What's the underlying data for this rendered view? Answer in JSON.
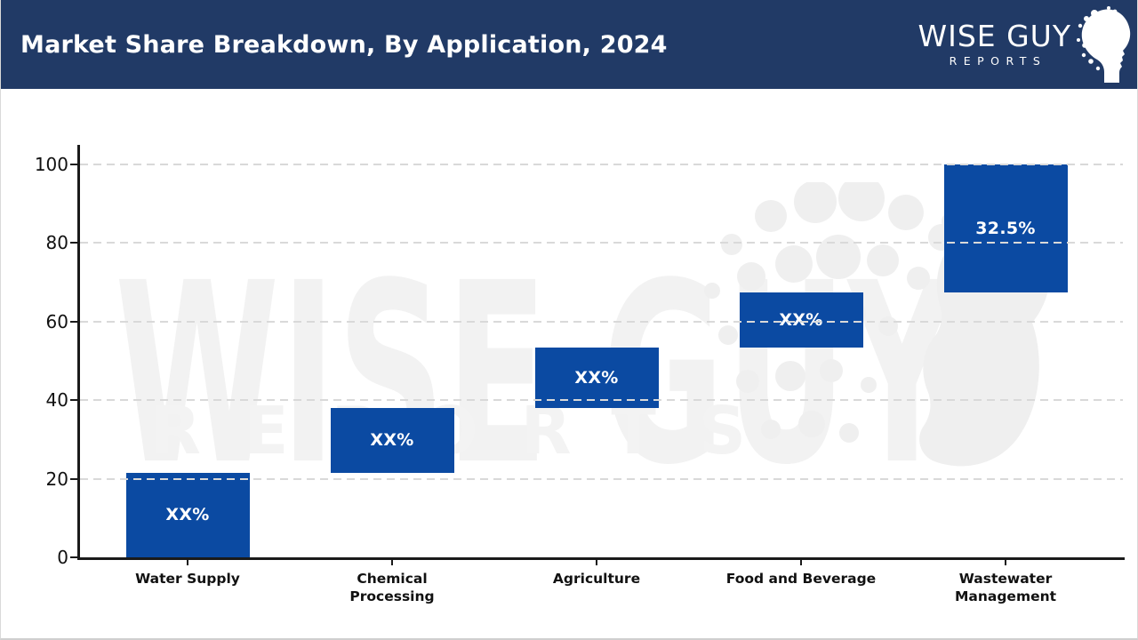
{
  "header": {
    "title": "Market Share Breakdown, By Application, 2024"
  },
  "logo": {
    "line1": "WISE GUY",
    "line2": "REPORTS"
  },
  "watermark": {
    "line1": "WISE GUY",
    "line2": "REPORTS"
  },
  "chart_data": {
    "type": "bar",
    "subtype": "waterfall",
    "title": "Market Share Breakdown, By Application, 2024",
    "categories": [
      "Water Supply",
      "Chemical\nProcessing",
      "Agriculture",
      "Food and Beverage",
      "Wastewater\nManagement"
    ],
    "bars": [
      {
        "category": "Water Supply",
        "start": 0,
        "end": 21.5,
        "label": "XX%"
      },
      {
        "category": "Chemical Processing",
        "start": 21.5,
        "end": 38,
        "label": "XX%"
      },
      {
        "category": "Agriculture",
        "start": 38,
        "end": 53.5,
        "label": "XX%"
      },
      {
        "category": "Food and Beverage",
        "start": 53.5,
        "end": 67.5,
        "label": "XX%"
      },
      {
        "category": "Wastewater Management",
        "start": 67.5,
        "end": 100,
        "label": "32.5%"
      }
    ],
    "xlabel": "",
    "ylabel": "",
    "ylim": [
      0,
      100
    ],
    "yticks": [
      0,
      20,
      40,
      60,
      80,
      100
    ],
    "grid": "horizontal-dashed",
    "legend": "none",
    "colors": {
      "bar": "#0b4aa2",
      "bar_label": "#ffffff",
      "grid": "#d9d9d9",
      "axis": "#1a1a1a",
      "header_bg": "#213a66",
      "header_text": "#ffffff",
      "watermark": "#f2f2f2"
    }
  }
}
